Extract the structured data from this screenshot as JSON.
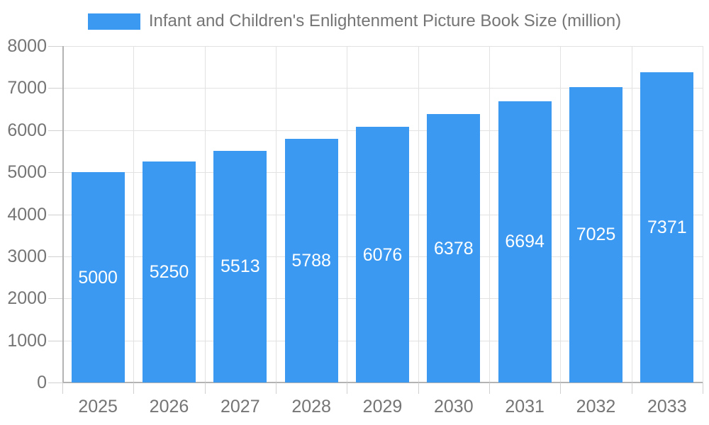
{
  "legend": {
    "items": [
      {
        "label": "Infant and Children's Enlightenment Picture Book Size (million)",
        "color": "#3B99F1"
      }
    ]
  },
  "chart_data": {
    "type": "bar",
    "title": "Infant and Children's Enlightenment Picture Book Size (million)",
    "categories": [
      "2025",
      "2026",
      "2027",
      "2028",
      "2029",
      "2030",
      "2031",
      "2032",
      "2033"
    ],
    "values": [
      5000,
      5250,
      5513,
      5788,
      6076,
      6378,
      6694,
      7025,
      7371
    ],
    "xlabel": "",
    "ylabel": "",
    "ylim": [
      0,
      8000
    ],
    "ytick_step": 1000,
    "grid": true,
    "legend_position": "top-center",
    "bar_color": "#3B99F1",
    "bar_label_color": "#FFFFFF",
    "axis_text_color": "#757575",
    "grid_color": "#E2E2E2",
    "axis_line_color": "#B3B3B3",
    "background_color": "#FFFFFF"
  }
}
